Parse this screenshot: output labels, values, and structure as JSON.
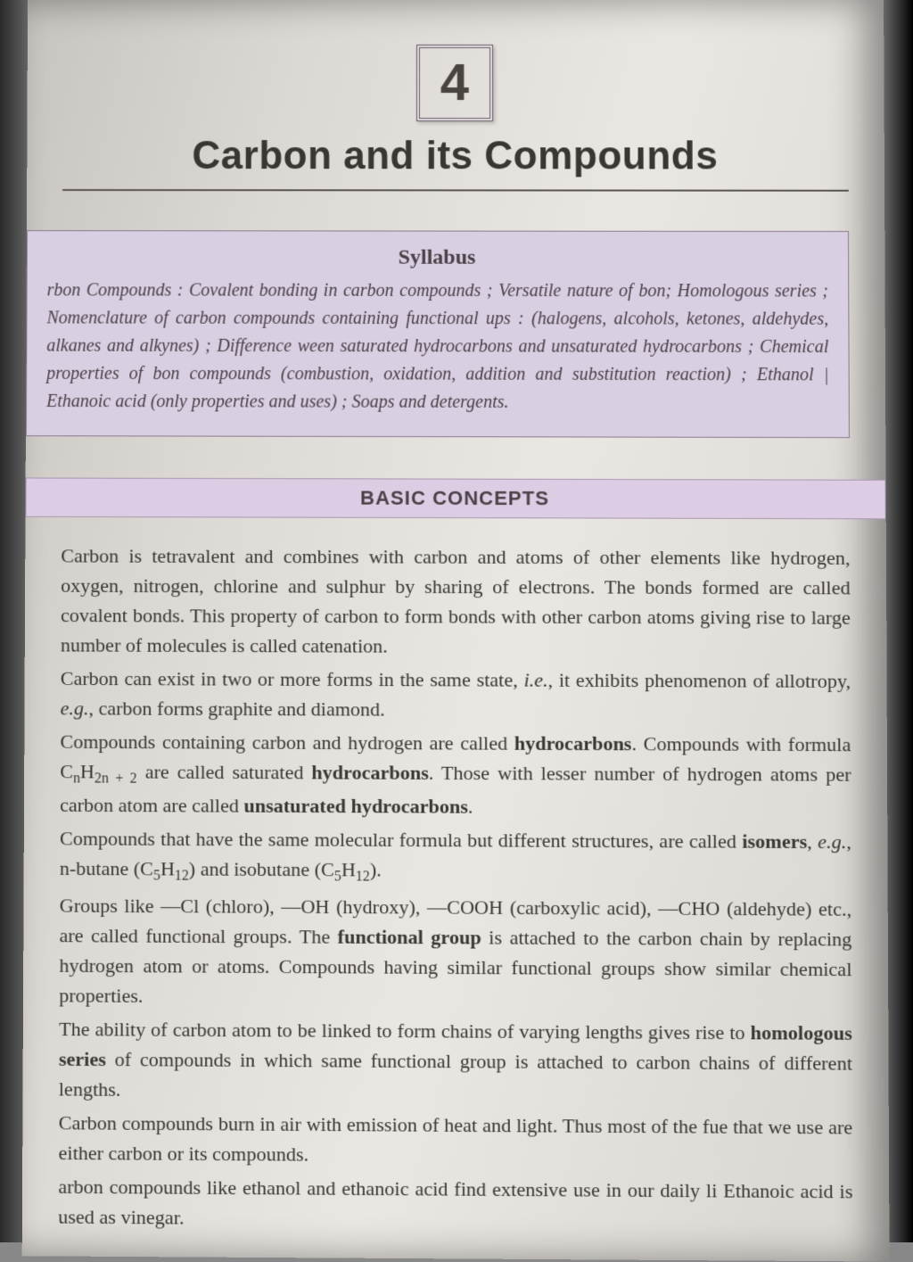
{
  "colors": {
    "page_gradient_from": "#c8c4c0",
    "page_gradient_to": "#eae7e2",
    "text": "#3a3632",
    "box_border": "#6a5a70",
    "syllabus_bg": "#d9cfe2",
    "syllabus_border": "#8b7a90",
    "section_bg": "#dccde5",
    "section_border": "#a896b0"
  },
  "typography": {
    "chapter_num_fontsize": 58,
    "chapter_title_fontsize": 44,
    "syllabus_heading_fontsize": 24,
    "syllabus_body_fontsize": 20,
    "section_bar_fontsize": 22,
    "body_fontsize": 22,
    "body_font": "Georgia, serif",
    "heading_font": "Arial, sans-serif"
  },
  "chapter": {
    "number": "4",
    "title": "Carbon and its Compounds"
  },
  "syllabus": {
    "heading": "Syllabus",
    "body": "rbon Compounds : Covalent bonding in carbon compounds ; Versatile nature of bon; Homologous series ; Nomenclature of carbon compounds containing functional ups : (halogens, alcohols, ketones, aldehydes, alkanes and alkynes) ; Difference ween saturated hydrocarbons and unsaturated hydrocarbons ; Chemical properties of bon compounds (combustion, oxidation, addition and substitution reaction) ; Ethanol | Ethanoic acid (only properties and uses) ; Soaps and detergents."
  },
  "section": {
    "heading": "BASIC CONCEPTS"
  },
  "body": {
    "p1": "Carbon is tetravalent and combines with carbon and atoms of other elements like hydrogen, oxygen, nitrogen, chlorine and sulphur by sharing of electrons. The bonds formed are called covalent bonds. This property of carbon to form bonds with other carbon atoms giving rise to large number of molecules is called catenation.",
    "p2a": "Carbon can exist in two or more forms in the same state, ",
    "p2b": "i.e.",
    "p2c": ", it exhibits phenomenon of allotropy, ",
    "p2d": "e.g.",
    "p2e": ", carbon forms graphite and diamond.",
    "p3a": "Compounds containing carbon and hydrogen are called ",
    "p3b": "hydrocarbons",
    "p3c": ". Compounds with formula C",
    "p3d": "n",
    "p3e": "H",
    "p3f": "2n + 2",
    "p3g": " are called saturated ",
    "p3h": "hydrocarbons",
    "p3i": ". Those with lesser number of hydrogen atoms per carbon atom are called ",
    "p3j": "unsaturated hydrocarbons",
    "p3k": ".",
    "p4a": "Compounds that have the same molecular formula but different structures, are called ",
    "p4b": "isomers",
    "p4c": ", ",
    "p4d": "e.g.",
    "p4e": ", n-butane (C",
    "p4f": "5",
    "p4g": "H",
    "p4h": "12",
    "p4i": ") and isobutane (C",
    "p4j": "5",
    "p4k": "H",
    "p4l": "12",
    "p4m": ").",
    "p5a": "Groups like —Cl (chloro), —OH (hydroxy), —COOH (carboxylic acid), —CHO (aldehyde) etc., are called functional groups. The ",
    "p5b": "functional group",
    "p5c": " is attached to the carbon chain by replacing hydrogen atom or atoms. Compounds having similar functional groups show similar chemical properties.",
    "p6a": "The ability of carbon atom to be linked to form chains of varying lengths gives rise to ",
    "p6b": "homologous series",
    "p6c": " of compounds in which same functional group is attached to carbon chains of different lengths.",
    "p7": "Carbon compounds burn in air with emission of heat and light. Thus most of the fue that we use are either carbon or its compounds.",
    "p8": "arbon compounds like ethanol and ethanoic acid find extensive use in our daily li                                                              Ethanoic acid is used as vinegar."
  }
}
